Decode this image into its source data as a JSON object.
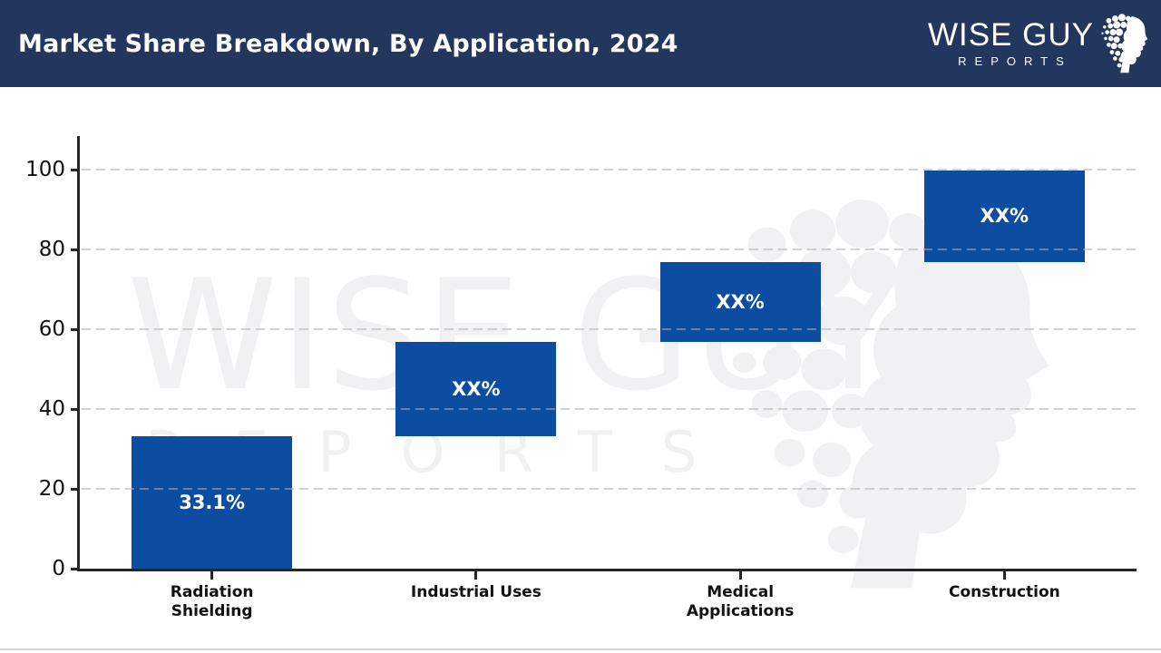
{
  "header": {
    "title": "Market Share Breakdown, By Application, 2024",
    "logo": {
      "name": "WISE GUY",
      "tagline": "REPORTS",
      "head_icon": "dotted-head-profile-icon"
    }
  },
  "watermark": {
    "line1": "WISE GUY",
    "line2": "REPORTS",
    "head_icon": "dotted-head-profile-icon"
  },
  "colors": {
    "header_bg": "#22365e",
    "header_text": "#ffffff",
    "bar_fill": "#0d4da1",
    "bar_label_text": "#ffffff",
    "axis": "#262626",
    "tick_label": "#111111",
    "grid": "#bdbdbd",
    "watermark": "#f1f1f3"
  },
  "chart_data": {
    "type": "bar",
    "subtype": "waterfall",
    "title": "Market Share Breakdown, By Application, 2024",
    "categories": [
      "Radiation Shielding",
      "Industrial Uses",
      "Medical Applications",
      "Construction"
    ],
    "series": [
      {
        "name": "Market share (%)",
        "segments": [
          {
            "category": "Radiation Shielding",
            "start": 0,
            "end": 33.1,
            "label": "33.1%"
          },
          {
            "category": "Industrial Uses",
            "start": 33.1,
            "end": 56.9,
            "label": "XX%"
          },
          {
            "category": "Medical Applications",
            "start": 56.9,
            "end": 76.9,
            "label": "XX%"
          },
          {
            "category": "Construction",
            "start": 76.9,
            "end": 99.7,
            "label": "XX%"
          }
        ]
      }
    ],
    "xlabel": "",
    "ylabel": "",
    "ylim": [
      0,
      100
    ],
    "yticks": [
      0,
      20,
      40,
      60,
      80,
      100
    ],
    "grid": "horizontal-dashed",
    "legend": "none"
  }
}
